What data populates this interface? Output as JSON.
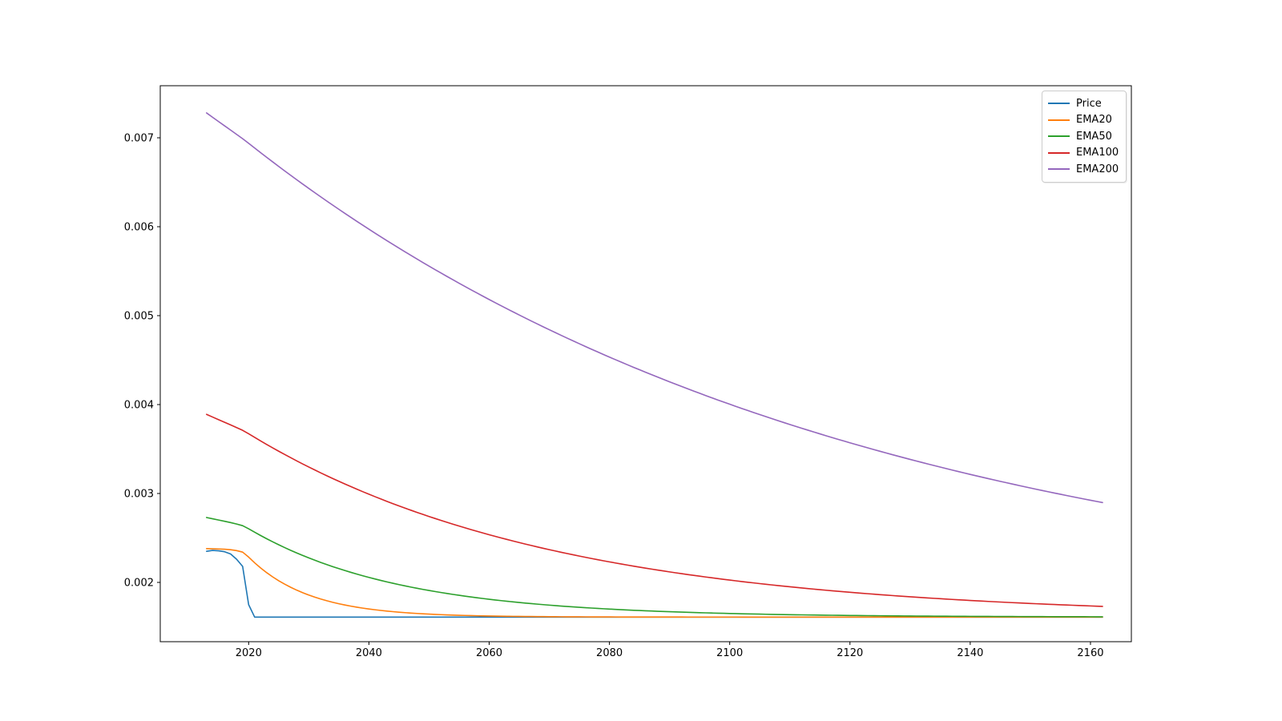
{
  "chart_data": {
    "type": "line",
    "title": "",
    "xlabel": "",
    "ylabel": "",
    "grid": false,
    "background": "#ffffff",
    "spine_color": "#000000",
    "xlim": [
      2005.3,
      2166.8
    ],
    "ylim": [
      0.0013333,
      0.0075856
    ],
    "xticks": [
      2020,
      2040,
      2060,
      2080,
      2100,
      2120,
      2140,
      2160
    ],
    "yticks": [
      0.002,
      0.003,
      0.004,
      0.005,
      0.006,
      0.007
    ],
    "ytick_labels": [
      "0.002",
      "0.003",
      "0.004",
      "0.005",
      "0.006",
      "0.007"
    ],
    "xtick_labels": [
      "2020",
      "2040",
      "2060",
      "2080",
      "2100",
      "2120",
      "2140",
      "2160"
    ],
    "x_start": 2013,
    "x_step": 1,
    "n_points": 150,
    "legend_position": "upper right",
    "series": [
      {
        "name": "Price",
        "color": "#1f77b4",
        "kind": "explicit",
        "values_head": [
          0.00235,
          0.00236,
          0.002355,
          0.002345,
          0.00232,
          0.00226,
          0.00218,
          0.00175,
          0.00161
        ],
        "tail_fill_value": 0.00161
      },
      {
        "name": "EMA20",
        "color": "#ff7f0e",
        "kind": "ema",
        "span": 20,
        "seed": 0.00238
      },
      {
        "name": "EMA50",
        "color": "#2ca02c",
        "kind": "ema",
        "span": 50,
        "seed": 0.00273
      },
      {
        "name": "EMA100",
        "color": "#d62728",
        "kind": "ema",
        "span": 100,
        "seed": 0.00389
      },
      {
        "name": "EMA200",
        "color": "#9467bd",
        "kind": "ema",
        "span": 200,
        "seed": 0.00728
      }
    ]
  }
}
